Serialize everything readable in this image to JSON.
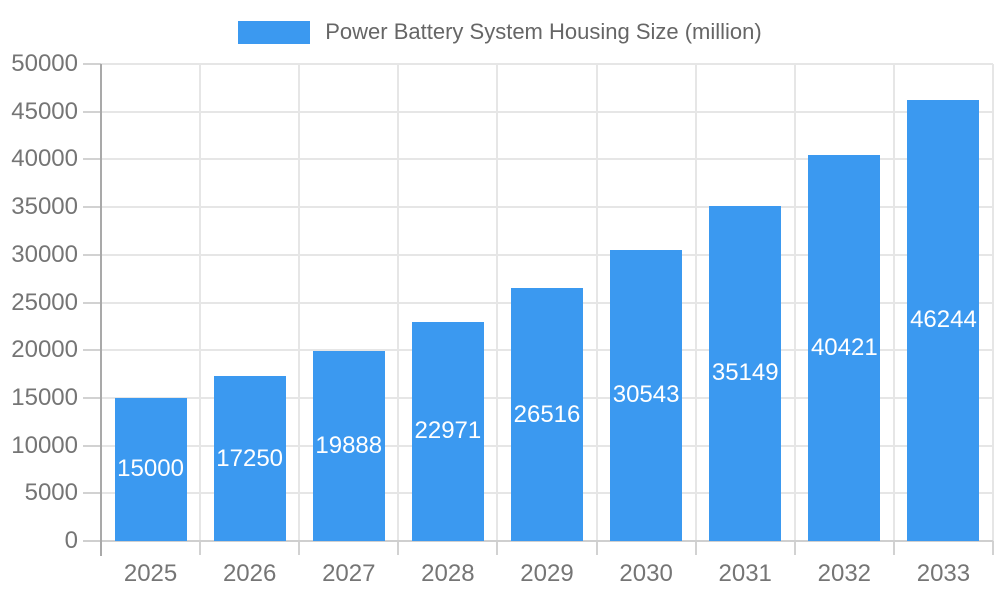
{
  "chart_data": {
    "type": "bar",
    "title": "Power Battery System Housing Size (million)",
    "categories": [
      "2025",
      "2026",
      "2027",
      "2028",
      "2029",
      "2030",
      "2031",
      "2032",
      "2033"
    ],
    "values": [
      15000,
      17250,
      19888,
      22971,
      26516,
      30543,
      35149,
      40421,
      46244
    ],
    "xlabel": "",
    "ylabel": "",
    "ylim": [
      0,
      50000
    ],
    "ytick_step": 5000,
    "grid": true,
    "legend_position": "top",
    "bar_value_labels_inside": true
  },
  "colors": {
    "bar": "#3B99F0",
    "bar_value_label": "#FFFFFF",
    "axis_text": "#757575",
    "legend_text": "#666666",
    "gridline": "#E6E6E6",
    "axis_line_y": "#A9A9A9",
    "axis_line_x": "#CFCFCF",
    "tick_line": "#D2D2D2",
    "background": "#FFFFFF"
  }
}
